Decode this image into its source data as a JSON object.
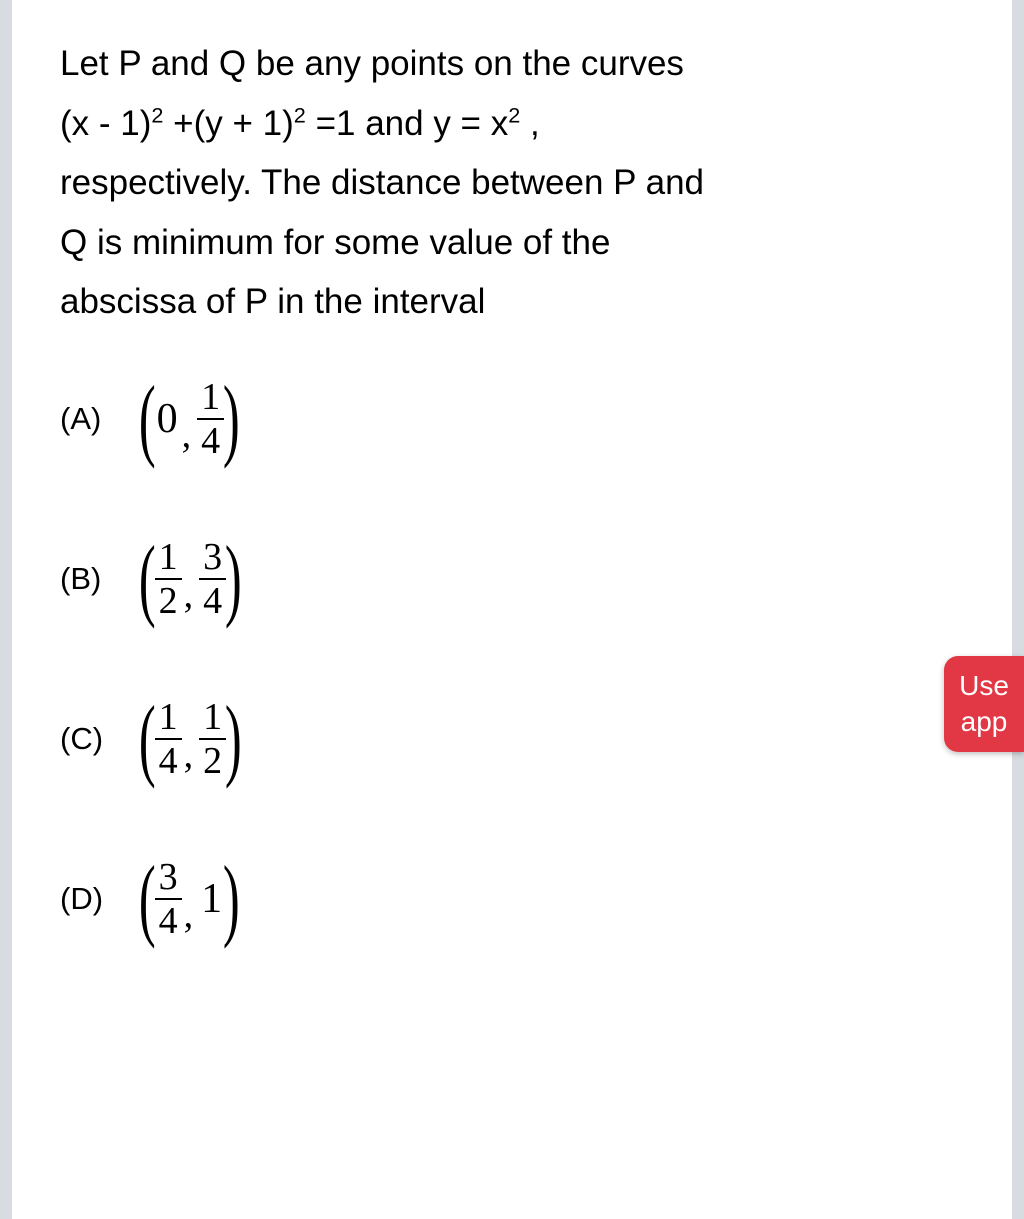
{
  "question": {
    "line1": "Let P and Q be any points on the curves",
    "line2_pre": "(x - 1)",
    "line2_exp1": "2",
    "line2_mid1": " +(y + 1)",
    "line2_exp2": "2",
    "line2_mid2": " =1 and y = x",
    "line2_exp3": "2",
    "line2_post": " ,",
    "line3": "respectively. The distance between P and",
    "line4": "Q is minimum for some value of the",
    "line5": "abscissa of P in the interval"
  },
  "options": {
    "a": {
      "label": "(A)",
      "left_whole": "0",
      "right_num": "1",
      "right_den": "4"
    },
    "b": {
      "label": "(B)",
      "left_num": "1",
      "left_den": "2",
      "right_num": "3",
      "right_den": "4"
    },
    "c": {
      "label": "(C)",
      "left_num": "1",
      "left_den": "4",
      "right_num": "1",
      "right_den": "2"
    },
    "d": {
      "label": "(D)",
      "left_num": "3",
      "left_den": "4",
      "right_whole": "1"
    }
  },
  "badge": {
    "line1": "Use",
    "line2": "app"
  },
  "colors": {
    "badge_bg": "#e23744",
    "badge_fg": "#ffffff",
    "page_bg": "#ffffff",
    "body_bg": "#d8dce0",
    "text": "#000000"
  }
}
